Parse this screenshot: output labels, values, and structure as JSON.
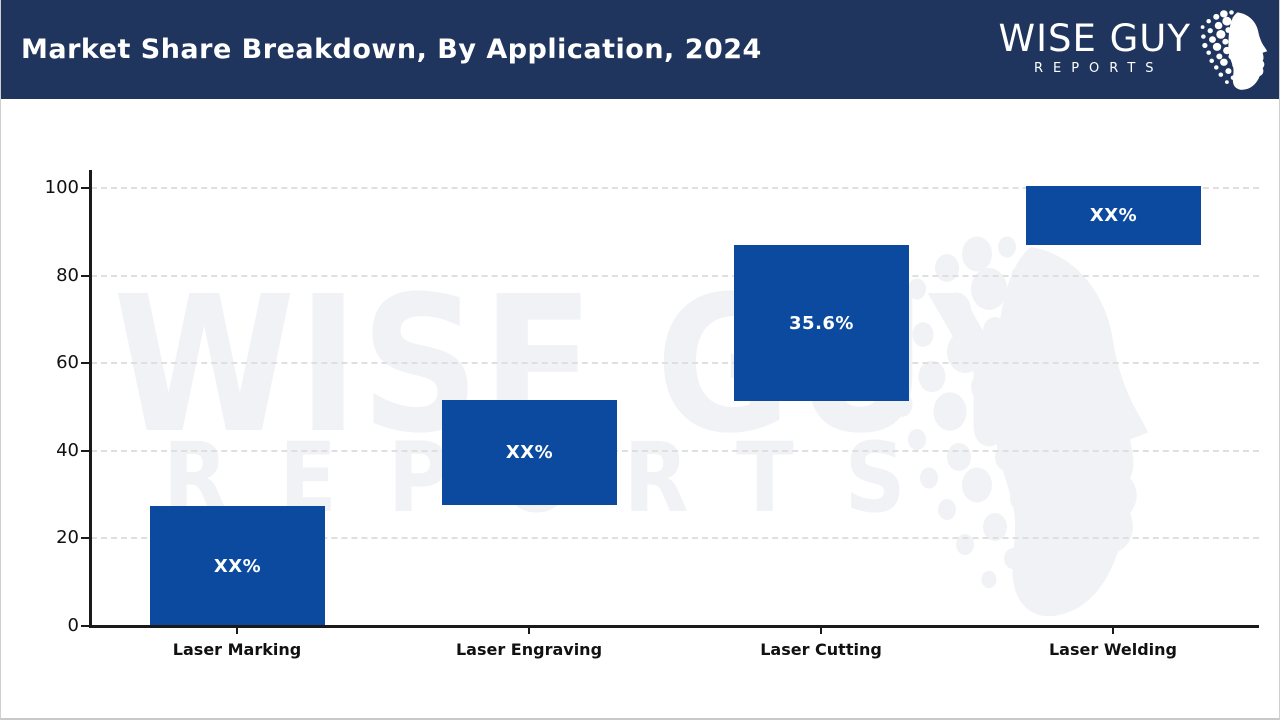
{
  "header": {
    "title": "Market Share Breakdown, By Application, 2024",
    "logo": {
      "line1": "WISE GUY",
      "line2": "REPORTS"
    }
  },
  "watermark": {
    "line1": "WISE GUY",
    "line2": "REPORTS"
  },
  "chart_data": {
    "type": "bar",
    "subtype": "waterfall-floating-bars",
    "title": "Market Share Breakdown, By Application, 2024",
    "xlabel": "",
    "ylabel": "",
    "categories": [
      "Laser Marking",
      "Laser Engraving",
      "Laser Cutting",
      "Laser Welding"
    ],
    "bars": [
      {
        "category": "Laser Marking",
        "start": 0,
        "end": 27.5,
        "label": "XX%"
      },
      {
        "category": "Laser Engraving",
        "start": 27.5,
        "end": 51.5,
        "label": "XX%"
      },
      {
        "category": "Laser Cutting",
        "start": 51.5,
        "end": 87.1,
        "label": "35.6%",
        "value": 35.6
      },
      {
        "category": "Laser Welding",
        "start": 87.1,
        "end": 100.5,
        "label": "XX%"
      }
    ],
    "yticks": [
      0,
      20,
      40,
      60,
      80,
      100
    ],
    "ylim": [
      0,
      104
    ],
    "grid": true,
    "gridlines_at": [
      20,
      40,
      60,
      80,
      100
    ],
    "legend": "none",
    "colors": {
      "bar": "#0B4A9E",
      "header_bg": "#1F355E",
      "grid": "#DFDFDF",
      "axis": "#1A1A1A",
      "watermark": "#F1F2F5"
    }
  }
}
